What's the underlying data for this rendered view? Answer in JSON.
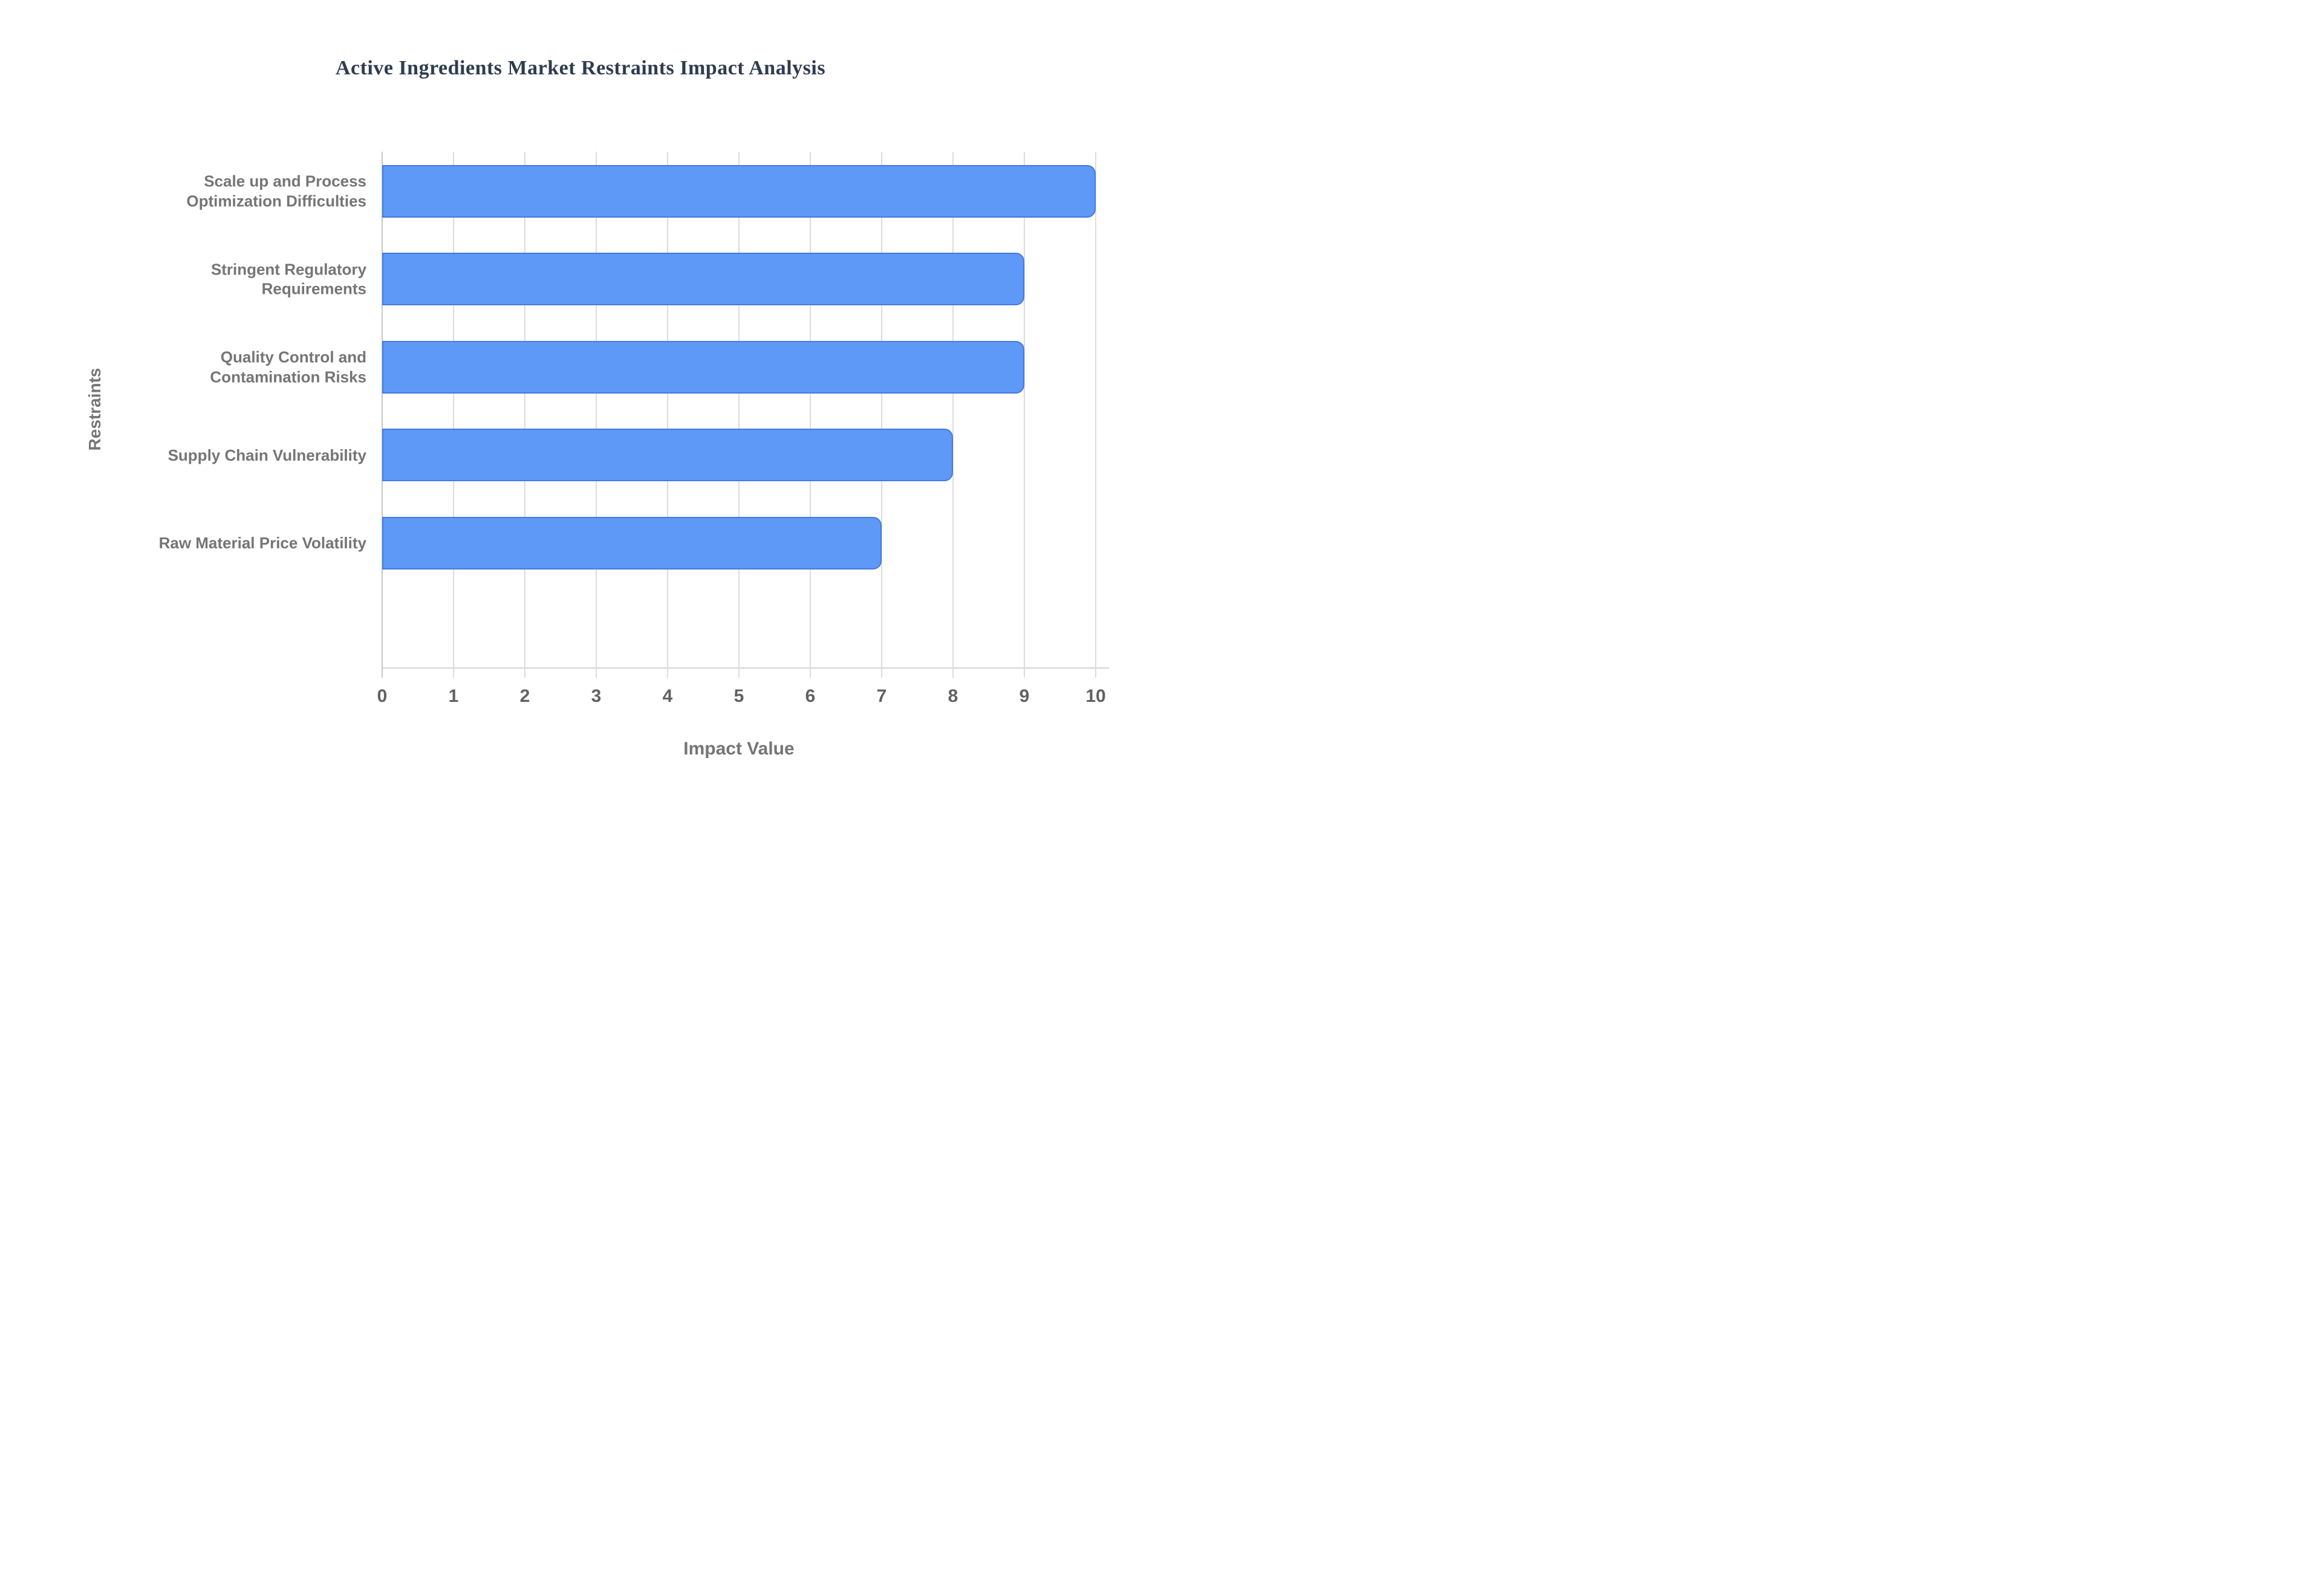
{
  "title": "Active Ingredients Market Restraints Impact Analysis",
  "background_color": "#ffffff",
  "chart_data": {
    "type": "bar",
    "orientation": "horizontal",
    "title": "Active Ingredients Market Restraints Impact Analysis",
    "categories": [
      "Scale up and Process Optimization Difficulties",
      "Stringent Regulatory Requirements",
      "Quality Control and Contamination Risks",
      "Supply Chain Vulnerability",
      "Raw Material Price Volatility"
    ],
    "categories_display": [
      [
        "Scale up and Process",
        "Optimization Difficulties"
      ],
      [
        "Stringent Regulatory",
        "Requirements"
      ],
      [
        "Quality Control and",
        "Contamination Risks"
      ],
      [
        "Supply Chain Vulnerability"
      ],
      [
        "Raw Material Price Volatility"
      ]
    ],
    "values": [
      10,
      9,
      9,
      8,
      7
    ],
    "xlabel": "Impact Value",
    "ylabel": "Restraints",
    "xlim": [
      0,
      10
    ],
    "xticks": [
      "0",
      "1",
      "2",
      "3",
      "4",
      "5",
      "6",
      "7",
      "8",
      "9",
      "10"
    ],
    "grid": true,
    "legend": false,
    "bar_color": "#5f99f7",
    "bar_border_color": "#4678e0",
    "gridline_color": "#dcdcdc",
    "title_color": "#2e3c50",
    "category_label_color": "#757575",
    "tick_label_color": "#616161",
    "axis_title_color": "#757575"
  }
}
